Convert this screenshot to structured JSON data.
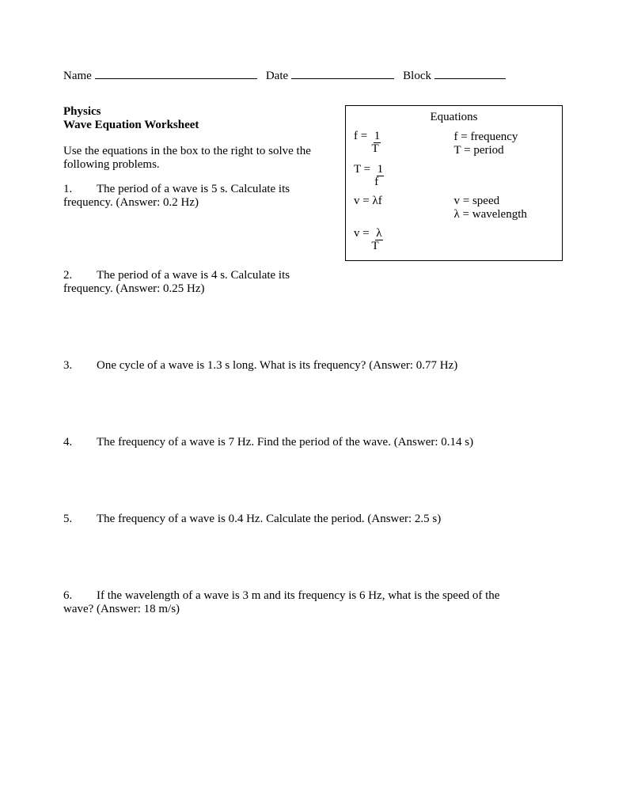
{
  "header": {
    "name_label": "Name",
    "date_label": "Date",
    "block_label": "Block"
  },
  "title": {
    "subject": "Physics",
    "worksheet": "Wave Equation Worksheet"
  },
  "intro": "Use the equations in the box to the right to solve the following problems.",
  "equations_box": {
    "title": "Equations",
    "rows": [
      {
        "left_top": "f =  1",
        "left_bot": "T",
        "right1": "f = frequency",
        "right2": "T = period"
      },
      {
        "left_top": "T =  1",
        "left_bot": "f",
        "right1": "",
        "right2": ""
      },
      {
        "left_plain": "v = λf",
        "right1": "v = speed",
        "right2": "λ = wavelength"
      },
      {
        "left_top": "v =  λ",
        "left_bot": "T",
        "right1": "",
        "right2": ""
      }
    ]
  },
  "problems": [
    {
      "num": "1.",
      "text": "The period of a wave is 5 s.  Calculate its frequency. (Answer: 0.2 Hz)"
    },
    {
      "num": "2.",
      "text": "The period of a wave is 4 s.  Calculate its frequency. (Answer: 0.25 Hz)"
    },
    {
      "num": "3.",
      "text": "One cycle of a wave is 1.3 s long.  What is its frequency?  (Answer: 0.77 Hz)"
    },
    {
      "num": "4.",
      "text": "The frequency of a wave is 7 Hz.  Find the period of the wave.  (Answer: 0.14 s)"
    },
    {
      "num": "5.",
      "text": "The frequency of a wave is 0.4 Hz.  Calculate the period. (Answer: 2.5 s)"
    },
    {
      "num": "6.",
      "text": "If the wavelength of a wave is 3 m and its frequency is 6 Hz, what is the speed of the wave? (Answer: 18 m/s)"
    }
  ]
}
